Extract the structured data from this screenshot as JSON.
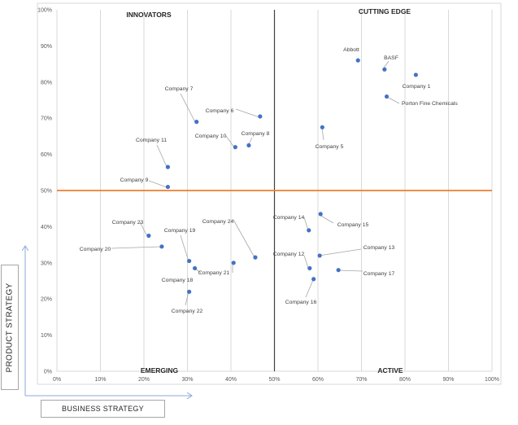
{
  "chart_data": {
    "type": "scatter",
    "xlabel": "BUSINESS STRATEGY",
    "ylabel": "PRODUCT STRATEGY",
    "xlim": [
      0,
      100
    ],
    "ylim": [
      0,
      100
    ],
    "x_ticks": [
      "0%",
      "10%",
      "20%",
      "30%",
      "40%",
      "50%",
      "60%",
      "70%",
      "80%",
      "90%",
      "100%"
    ],
    "y_ticks": [
      "0%",
      "10%",
      "20%",
      "30%",
      "40%",
      "50%",
      "60%",
      "70%",
      "80%",
      "90%",
      "100%"
    ],
    "grid": "vertical",
    "quadrants": {
      "top_left": "INNOVATORS",
      "top_right": "CUTTING EDGE",
      "bottom_left": "EMERGING",
      "bottom_right": "ACTIVE"
    },
    "divider_x": 50,
    "divider_y": 50,
    "colors": {
      "points": "#4472c4",
      "divider_h": "#ed7d31",
      "divider_v": "#404040",
      "grid": "#d9d9d9"
    },
    "points": [
      {
        "name": "Abbott",
        "x": 69.2,
        "y": 86.0
      },
      {
        "name": "BASF",
        "x": 75.3,
        "y": 83.5
      },
      {
        "name": "Company 1",
        "x": 82.5,
        "y": 82.0
      },
      {
        "name": "Porton Fine Chemicals",
        "x": 75.8,
        "y": 76.0
      },
      {
        "name": "Company 5",
        "x": 61.0,
        "y": 67.5
      },
      {
        "name": "Company 6",
        "x": 46.7,
        "y": 70.5
      },
      {
        "name": "Company 7",
        "x": 32.1,
        "y": 69.0
      },
      {
        "name": "Company 8",
        "x": 44.1,
        "y": 62.5
      },
      {
        "name": "Company 10",
        "x": 41.0,
        "y": 62.0
      },
      {
        "name": "Company 11",
        "x": 25.5,
        "y": 56.5
      },
      {
        "name": "Company 9",
        "x": 25.5,
        "y": 51.0
      },
      {
        "name": "Company 23",
        "x": 21.1,
        "y": 37.5
      },
      {
        "name": "Company 20",
        "x": 24.1,
        "y": 34.5
      },
      {
        "name": "Company 19",
        "x": 30.4,
        "y": 30.5
      },
      {
        "name": "Company 21",
        "x": 31.7,
        "y": 28.5
      },
      {
        "name": "Company 24",
        "x": 45.6,
        "y": 31.5
      },
      {
        "name": "Company 22",
        "x": 30.4,
        "y": 22.0
      },
      {
        "name": "Company 18",
        "x": 40.6,
        "y": 30.0
      },
      {
        "name": "Company 14",
        "x": 57.9,
        "y": 39.0
      },
      {
        "name": "Company 15",
        "x": 60.6,
        "y": 43.5
      },
      {
        "name": "Company 13",
        "x": 60.4,
        "y": 32.0
      },
      {
        "name": "Company 12",
        "x": 58.1,
        "y": 28.5
      },
      {
        "name": "Company 17",
        "x": 64.7,
        "y": 28.0
      },
      {
        "name": "Company 16",
        "x": 59.0,
        "y": 25.5
      }
    ]
  }
}
